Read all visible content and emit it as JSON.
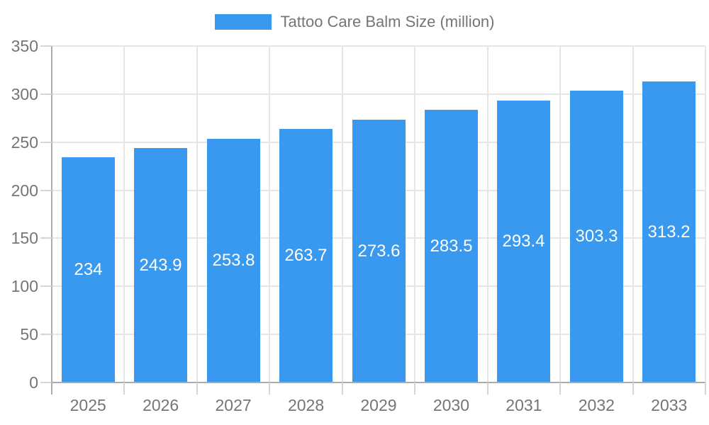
{
  "chart_data": {
    "type": "bar",
    "title": "Tattoo Care Balm Size (million)",
    "categories": [
      "2025",
      "2026",
      "2027",
      "2028",
      "2029",
      "2030",
      "2031",
      "2032",
      "2033"
    ],
    "values": [
      234,
      243.9,
      253.8,
      263.7,
      273.6,
      283.5,
      293.4,
      303.3,
      313.2
    ],
    "value_labels": [
      "234",
      "243.9",
      "253.8",
      "263.7",
      "273.6",
      "283.5",
      "293.4",
      "303.3",
      "313.2"
    ],
    "ylim": [
      0,
      350
    ],
    "ytick_step": 50,
    "ytick_labels": [
      "0",
      "50",
      "100",
      "150",
      "200",
      "250",
      "300",
      "350"
    ],
    "grid": "horizontal and vertical gridlines",
    "legend_position": "top-center",
    "colors": {
      "bar": "#3899EE",
      "bar_label": "#FFFFFF",
      "axis_text": "#757575",
      "legend_text": "#757575",
      "gridline": "#E6E6E6",
      "tick": "#D6D6D6",
      "axis_line": "#ABABAB",
      "background": "#FFFFFF"
    }
  }
}
